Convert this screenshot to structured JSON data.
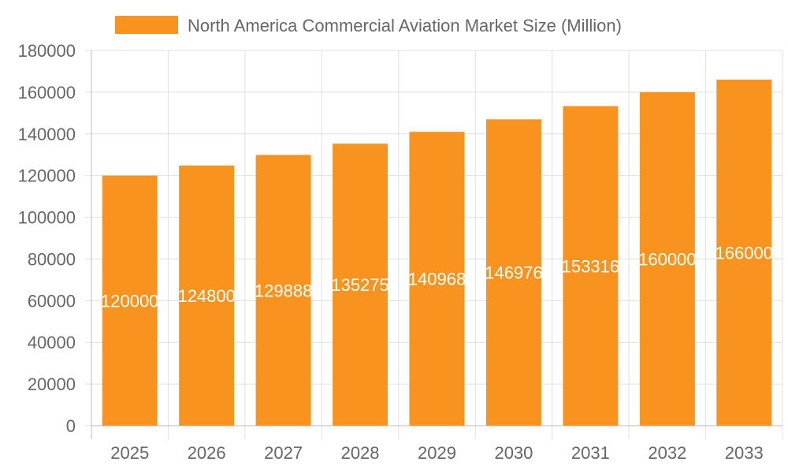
{
  "chart_data": {
    "type": "bar",
    "categories": [
      "2025",
      "2026",
      "2027",
      "2028",
      "2029",
      "2030",
      "2031",
      "2032",
      "2033"
    ],
    "series": [
      {
        "name": "North America Commercial Aviation Market Size (Million)",
        "values": [
          120000,
          124800,
          129888,
          135275,
          140968,
          146976,
          153316,
          160000,
          166000
        ]
      }
    ],
    "ylim": [
      0,
      180000
    ],
    "yticks": [
      0,
      20000,
      40000,
      60000,
      80000,
      100000,
      120000,
      140000,
      160000,
      180000
    ],
    "grid": true,
    "legend": "top",
    "colors": {
      "bar": "#F7931E",
      "grid": "#e0e0e0",
      "text": "#666666",
      "label": "#ffffff"
    }
  }
}
